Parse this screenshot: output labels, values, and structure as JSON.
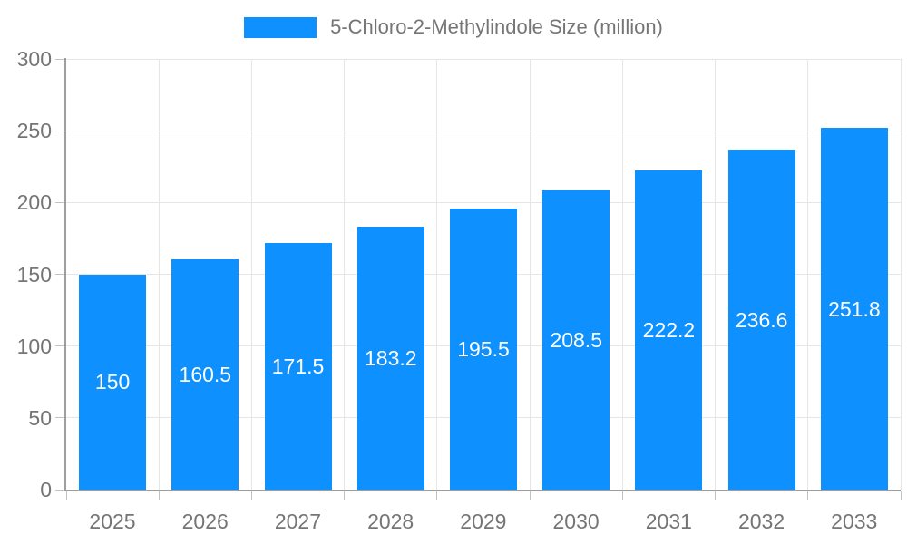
{
  "chart_data": {
    "type": "bar",
    "title": "5-Chloro-2-Methylindole Size (million)",
    "categories": [
      "2025",
      "2026",
      "2027",
      "2028",
      "2029",
      "2030",
      "2031",
      "2032",
      "2033"
    ],
    "values": [
      150,
      160.5,
      171.5,
      183.2,
      195.5,
      208.5,
      222.2,
      236.6,
      251.8
    ],
    "value_labels": [
      "150",
      "160.5",
      "171.5",
      "183.2",
      "195.5",
      "208.5",
      "222.2",
      "236.6",
      "251.8"
    ],
    "xlabel": "",
    "ylabel": "",
    "ylim": [
      0,
      300
    ],
    "yticks": [
      0,
      50,
      100,
      150,
      200,
      250,
      300
    ],
    "grid": "on",
    "legend_position": "top-center",
    "colors": {
      "bar": "#0e90fe",
      "bar_value_text": "#ffffff",
      "axis_line": "#9e9e9e",
      "tick_mark": "#c2c2c2",
      "gridline": "#e6e6e6",
      "label_text": "#757575"
    }
  }
}
